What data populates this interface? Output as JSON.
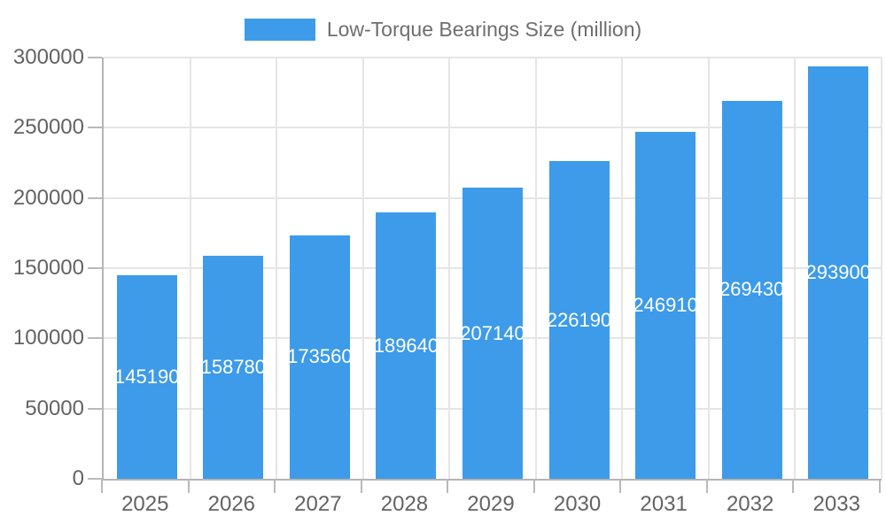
{
  "chart_data": {
    "type": "bar",
    "title": "",
    "xlabel": "",
    "ylabel": "",
    "legend": {
      "position": "top",
      "entries": [
        "Low-Torque Bearings Size (million)"
      ]
    },
    "categories": [
      "2025",
      "2026",
      "2027",
      "2028",
      "2029",
      "2030",
      "2031",
      "2032",
      "2033"
    ],
    "values": [
      145190,
      158780,
      173560,
      189640,
      207140,
      226190,
      246910,
      269430,
      293900
    ],
    "bar_labels": [
      "145190",
      "158780",
      "173560",
      "189640",
      "207140",
      "226190",
      "246910",
      "269430",
      "293900"
    ],
    "ylim": [
      0,
      300000
    ],
    "y_ticks": [
      0,
      50000,
      100000,
      150000,
      200000,
      250000,
      300000
    ],
    "grid": true,
    "bar_label_position": "inside-center"
  },
  "colors": {
    "bar": "#3D9BE9",
    "grid": "#E5E5E5",
    "axis": "#B5B5B5",
    "tick": "#B9B9B9",
    "axis_text": "#636363",
    "legend_text": "#6E6E6E",
    "bar_label_text": "#FFFFFF",
    "background": "#FFFFFF"
  }
}
